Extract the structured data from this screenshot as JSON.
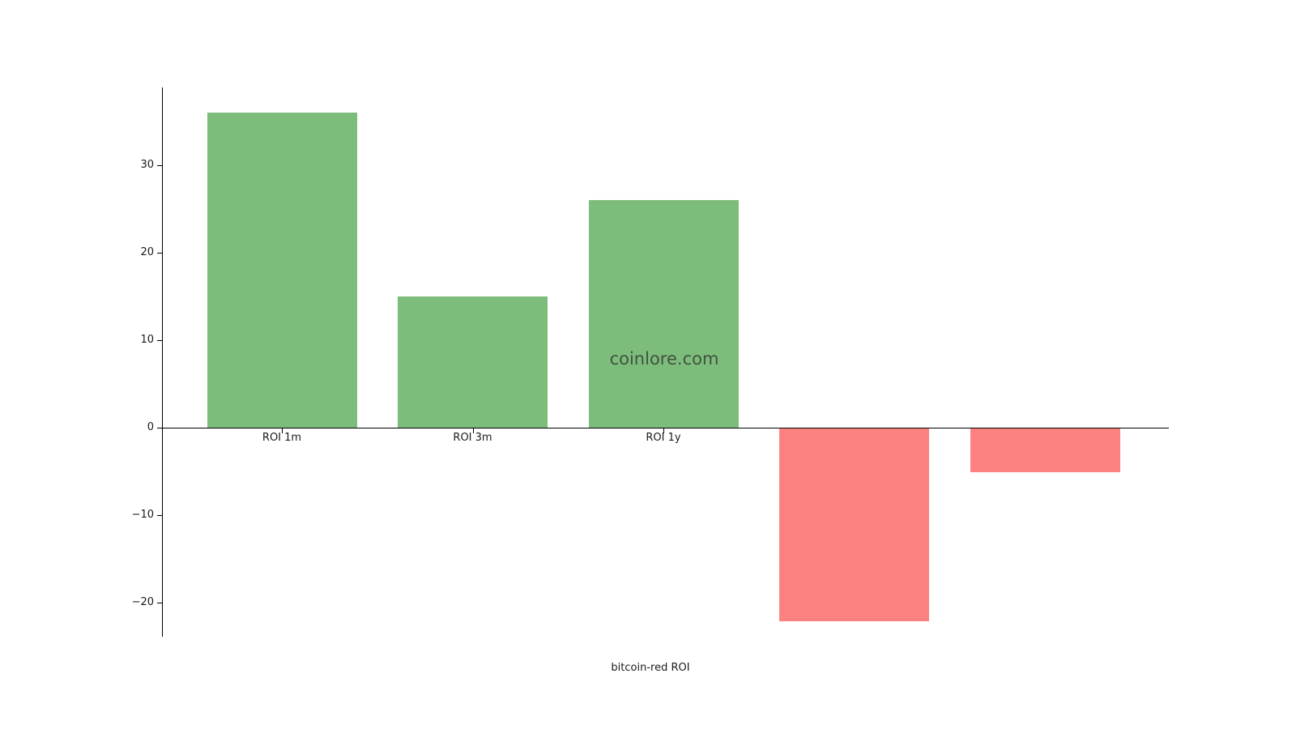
{
  "chart_data": {
    "type": "bar",
    "categories": [
      "ROI 1m",
      "ROI 3m",
      "ROI 1y",
      "",
      ""
    ],
    "values": [
      36,
      15,
      26,
      -22,
      -5
    ],
    "title": "bitcoin-red ROI",
    "xlabel": "",
    "ylabel": "",
    "ylim": [
      -25,
      39
    ],
    "yticks": [
      30,
      20,
      10,
      0,
      -10,
      -20
    ],
    "grid": false,
    "legend": false,
    "colors": {
      "positive": "#7dbd7b",
      "negative": "#fc8181",
      "axis": "#000000",
      "tick_text": "#1a1a1a"
    }
  },
  "watermark": {
    "text": "coinlore.com"
  }
}
